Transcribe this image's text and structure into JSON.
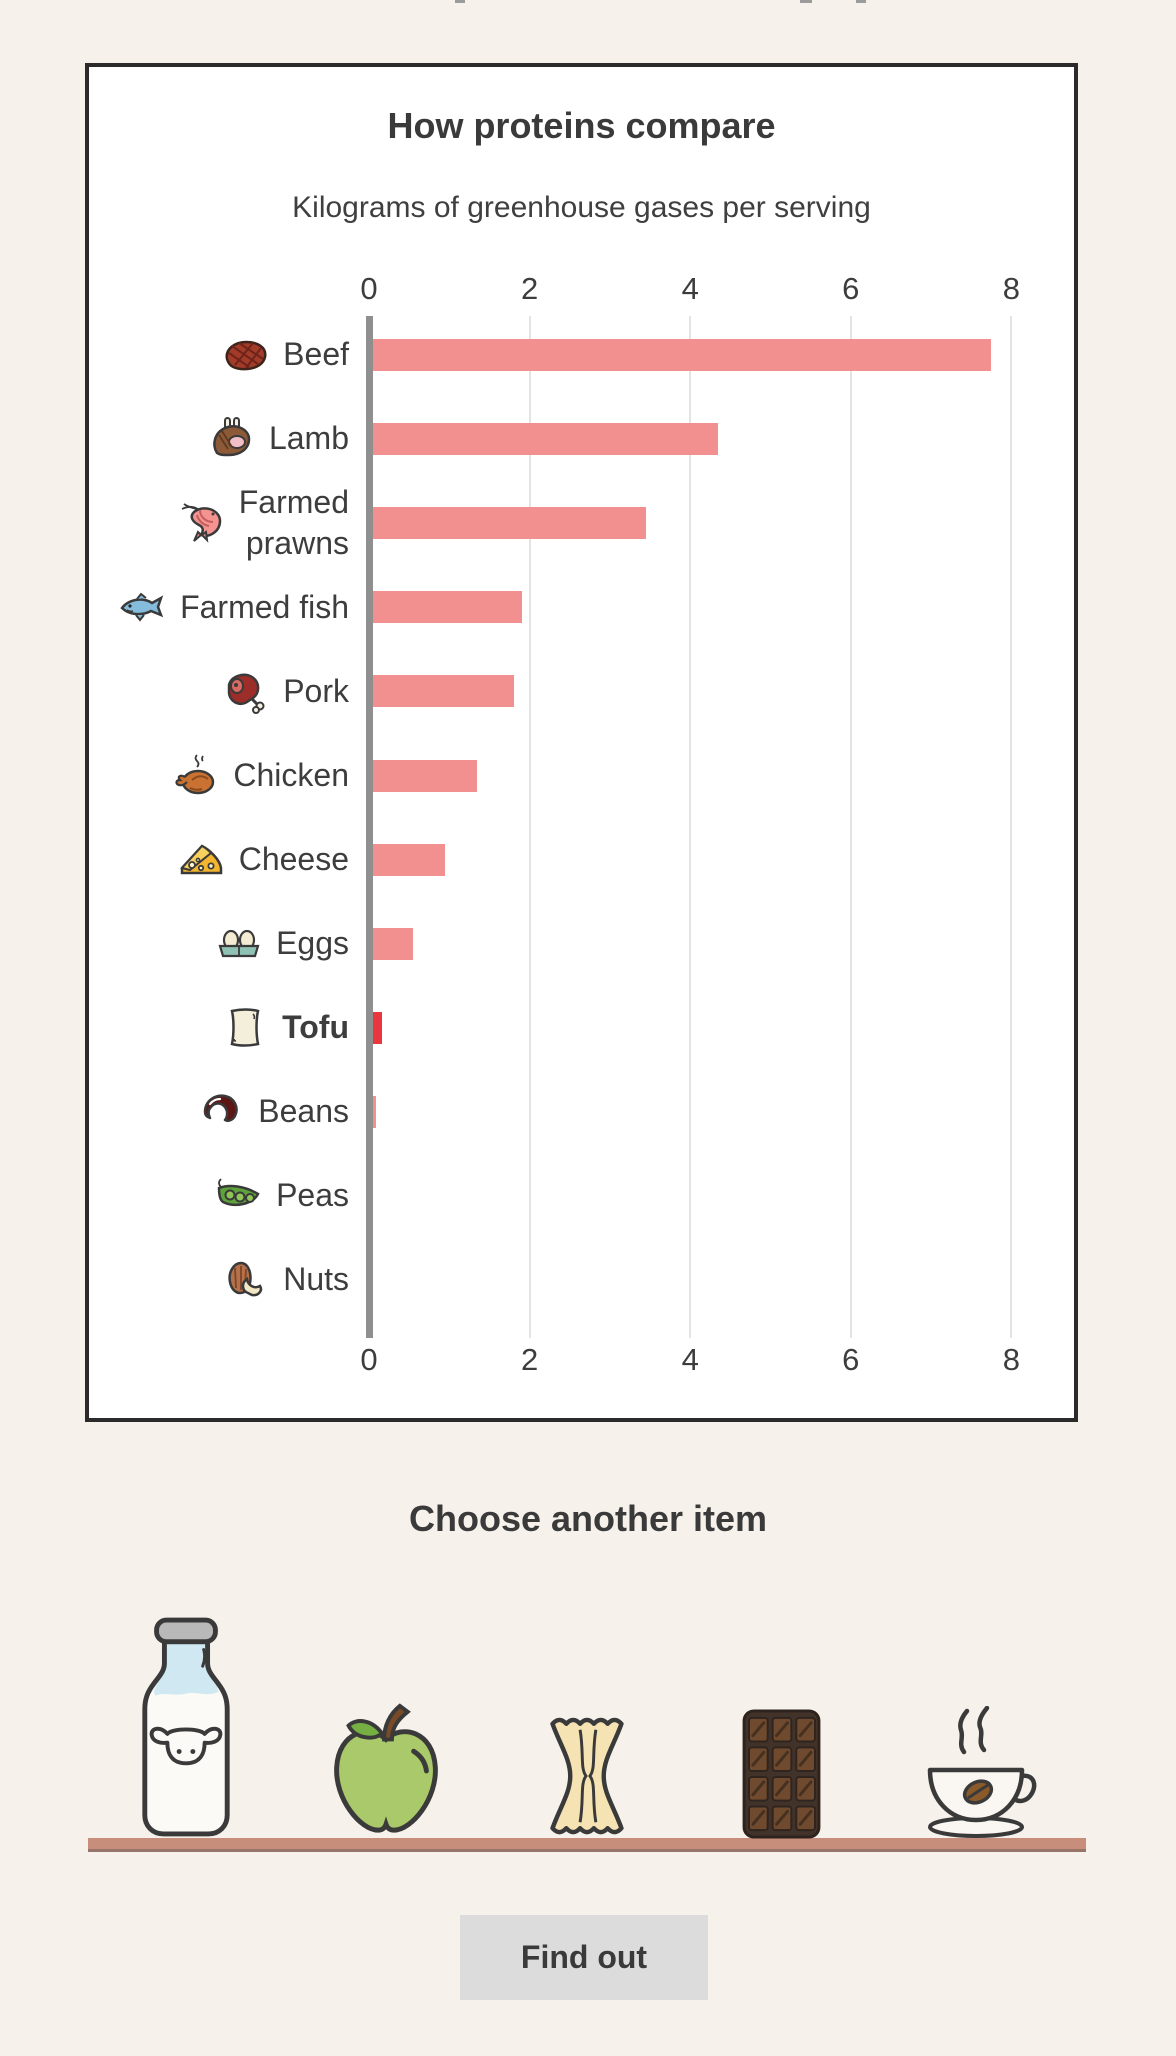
{
  "page": {
    "background": "#f6f1eb"
  },
  "chart_data": {
    "type": "bar",
    "orientation": "horizontal",
    "title": "How proteins compare",
    "subtitle": "Kilograms of greenhouse gases per serving",
    "categories": [
      "Beef",
      "Lamb",
      "Farmed\nprawns",
      "Farmed fish",
      "Pork",
      "Chicken",
      "Cheese",
      "Eggs",
      "Tofu",
      "Beans",
      "Peas",
      "Nuts"
    ],
    "values": [
      7.75,
      4.35,
      3.45,
      1.9,
      1.8,
      1.35,
      0.95,
      0.55,
      0.16,
      0.09,
      0.02,
      0.01
    ],
    "icons": [
      "beef",
      "lamb",
      "prawn",
      "fish",
      "pork",
      "chicken",
      "cheese",
      "eggs",
      "tofu",
      "bean",
      "peas",
      "nuts"
    ],
    "highlighted_category": "Tofu",
    "xlabel": "",
    "ylabel": "",
    "xlim": [
      0,
      8
    ],
    "x_ticks": [
      0,
      2,
      4,
      6,
      8
    ],
    "grid": true,
    "tick_label_rows": "top and bottom",
    "bar_color": "#f28f8f",
    "highlight_color": "#e8373f",
    "axis_color": "#8f8f8f"
  },
  "chooser": {
    "heading": "Choose another item",
    "items": [
      {
        "icon": "milk-bottle"
      },
      {
        "icon": "apple"
      },
      {
        "icon": "pasta"
      },
      {
        "icon": "chocolate-bar"
      },
      {
        "icon": "coffee-cup"
      }
    ],
    "button_label": "Find out",
    "shelf_color": "#c78e7c"
  }
}
